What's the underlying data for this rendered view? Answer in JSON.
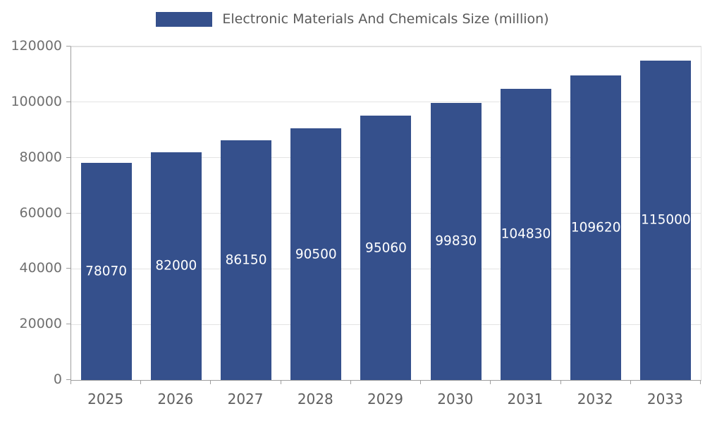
{
  "chart_data": {
    "type": "bar",
    "title": "Electronic Materials And Chemicals Size (million)",
    "legend": [
      "Electronic Materials And Chemicals Size (million)"
    ],
    "legend_position": "top",
    "categories": [
      "2025",
      "2026",
      "2027",
      "2028",
      "2029",
      "2030",
      "2031",
      "2032",
      "2033"
    ],
    "values": [
      78070,
      82000,
      86150,
      90500,
      95060,
      99830,
      104830,
      109620,
      115000
    ],
    "value_labels": [
      "78070",
      "82000",
      "86150",
      "90500",
      "95060",
      "99830",
      "104830",
      "109620",
      "115000"
    ],
    "xlabel": "",
    "ylabel": "",
    "ylim": [
      0,
      120000
    ],
    "yticks": [
      0,
      20000,
      40000,
      60000,
      80000,
      100000,
      120000
    ],
    "ytick_labels": [
      "0",
      "20000",
      "40000",
      "60000",
      "80000",
      "100000",
      "120000"
    ],
    "grid": true,
    "bar_color": "#35508C",
    "value_label_color": "#ffffff"
  }
}
